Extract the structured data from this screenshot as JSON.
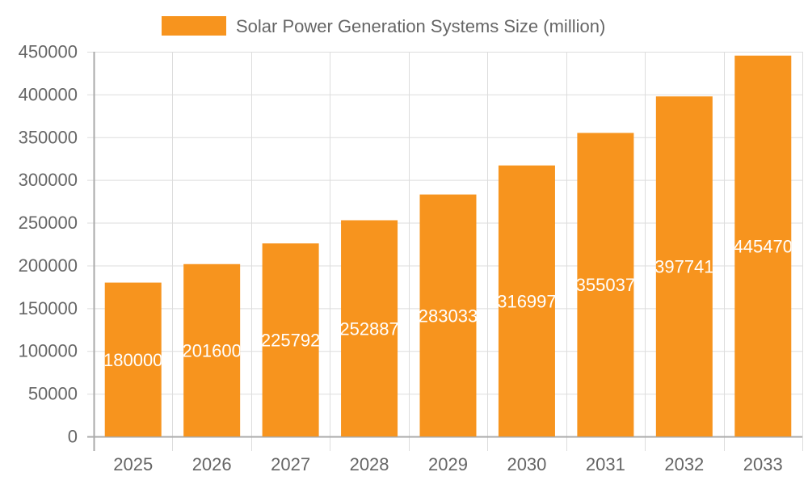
{
  "chart_data": {
    "type": "bar",
    "title": "",
    "xlabel": "",
    "ylabel": "",
    "categories": [
      "2025",
      "2026",
      "2027",
      "2028",
      "2029",
      "2030",
      "2031",
      "2032",
      "2033"
    ],
    "series": [
      {
        "name": "Solar Power Generation Systems Size (million)",
        "values": [
          180000,
          201600,
          225792,
          252887,
          283033,
          316997,
          355037,
          397741,
          445470
        ],
        "color": "#f7941e"
      }
    ],
    "ylim": [
      0,
      450000
    ],
    "yticks": [
      0,
      50000,
      100000,
      150000,
      200000,
      250000,
      300000,
      350000,
      400000,
      450000
    ],
    "grid": true,
    "legend": "top",
    "data_labels": true
  }
}
